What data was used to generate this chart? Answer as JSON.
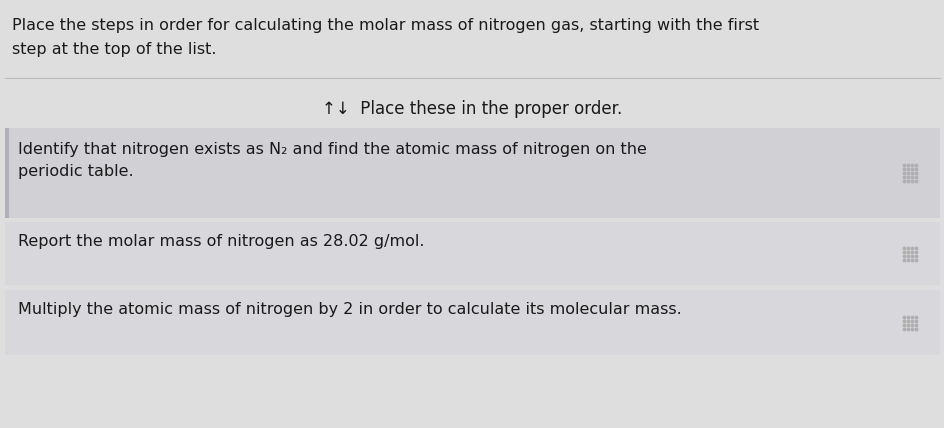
{
  "title_line1": "Place the steps in order for calculating the molar mass of nitrogen gas, starting with the first",
  "title_line2": "step at the top of the list.",
  "sort_label": "↑↓  Place these in the proper order.",
  "items": [
    "Identify that nitrogen exists as N₂ and find the atomic mass of nitrogen on the\nperiodic table.",
    "Report the molar mass of nitrogen as 28.02 g/mol.",
    "Multiply the atomic mass of nitrogen by 2 in order to calculate its molecular mass."
  ],
  "background_color": "#dedede",
  "item1_bg_color": "#d0d0d5",
  "item23_bg_color": "#d8d8dc",
  "title_fontsize": 11.5,
  "item_fontsize": 11.5,
  "sort_fontsize": 12,
  "text_color": "#1a1a1a",
  "drag_dot_color": "#b0b0b0",
  "separator_color": "#bbbbbb",
  "fig_width": 9.45,
  "fig_height": 4.28,
  "dpi": 100
}
